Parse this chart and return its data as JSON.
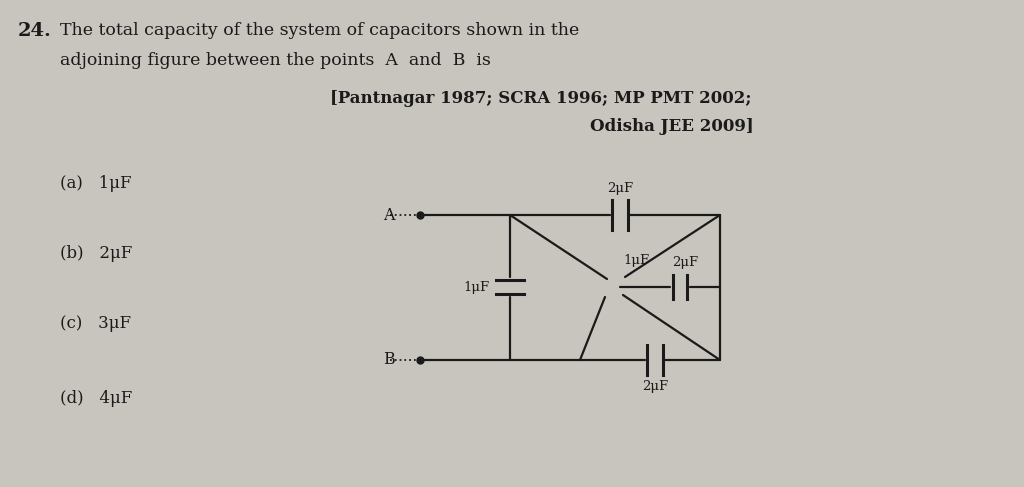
{
  "bg_color": "#c8c5be",
  "text_color": "#1a1a1a",
  "question_num": "24.",
  "question_text": "The total capacity of the system of capacitors shown in the",
  "question_text2": "adjoining figure between the points  A  and  B  is",
  "citation": "[Pantnagar 1987; SCRA 1996; MP PMT 2002;",
  "citation2": "Odisha JEE 2009]",
  "options": [
    "(a)   1μF",
    "(b)   2μF",
    "(c)   3μF",
    "(d)   4μF"
  ],
  "cap_top": "2μF",
  "cap_left": "1μF",
  "cap_center": "1μF",
  "cap_right": "2μF",
  "cap_bottom": "2μF",
  "node_A": "A",
  "node_B": "B"
}
